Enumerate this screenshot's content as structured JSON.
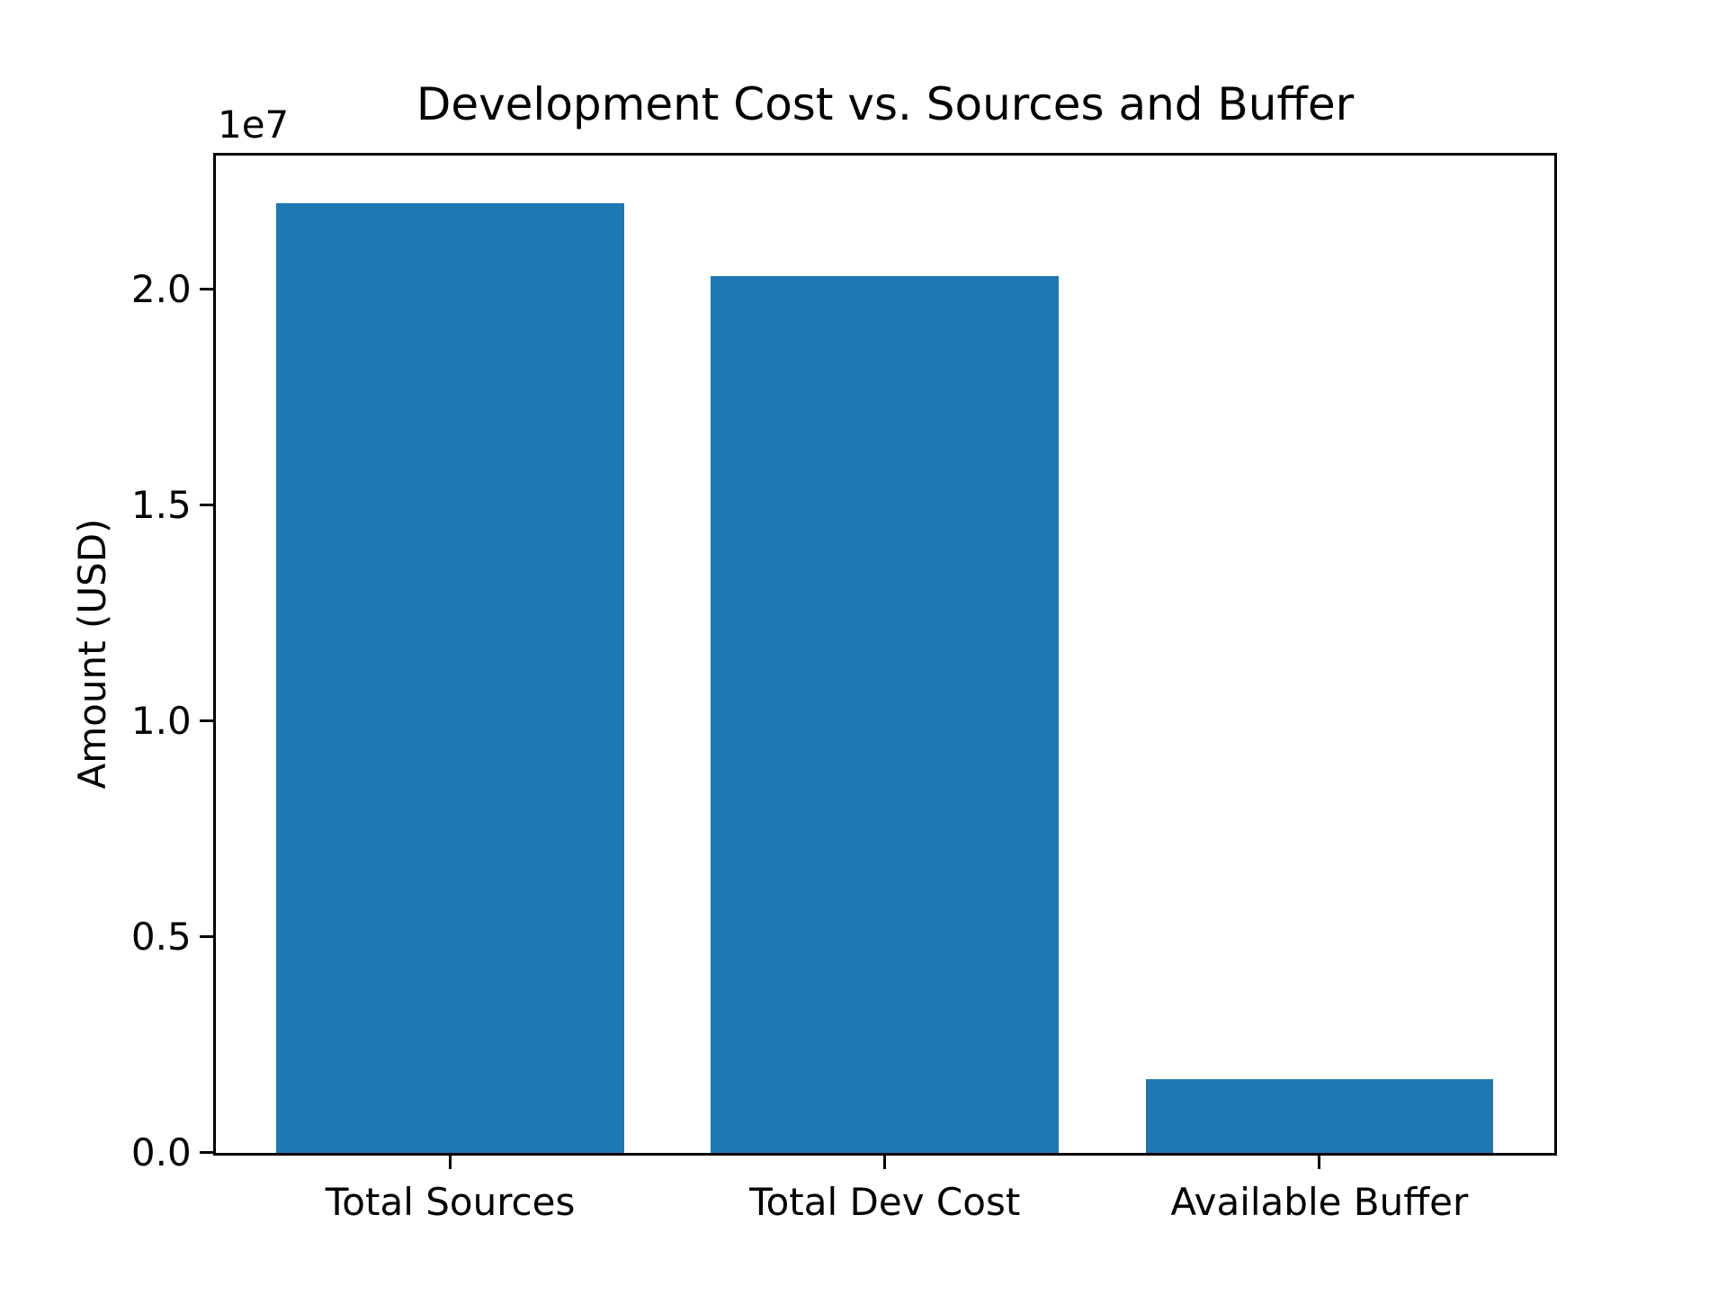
{
  "figure": {
    "title": "Development Cost vs. Sources and Buffer",
    "y_axis_label": "Amount (USD)",
    "offset_text": "1e7",
    "background_color": "#ffffff",
    "text_color": "#000000"
  },
  "chart_data": {
    "type": "bar",
    "title": "Development Cost vs. Sources and Buffer",
    "categories": [
      "Total Sources",
      "Total Dev Cost",
      "Available Buffer"
    ],
    "values": [
      22000000,
      20300000,
      1700000
    ],
    "xlabel": "",
    "ylabel": "Amount (USD)",
    "ylim": [
      0,
      23100000
    ],
    "yticks": [
      0,
      5000000,
      10000000,
      15000000,
      20000000
    ],
    "ytick_labels": [
      "0.0",
      "0.5",
      "1.0",
      "1.5",
      "2.0"
    ],
    "offset_text": "1e7",
    "bar_color": "#1f77b4",
    "bar_width_fraction": 0.8,
    "x_margin_fraction": 0.05,
    "grid": false,
    "legend": null
  }
}
